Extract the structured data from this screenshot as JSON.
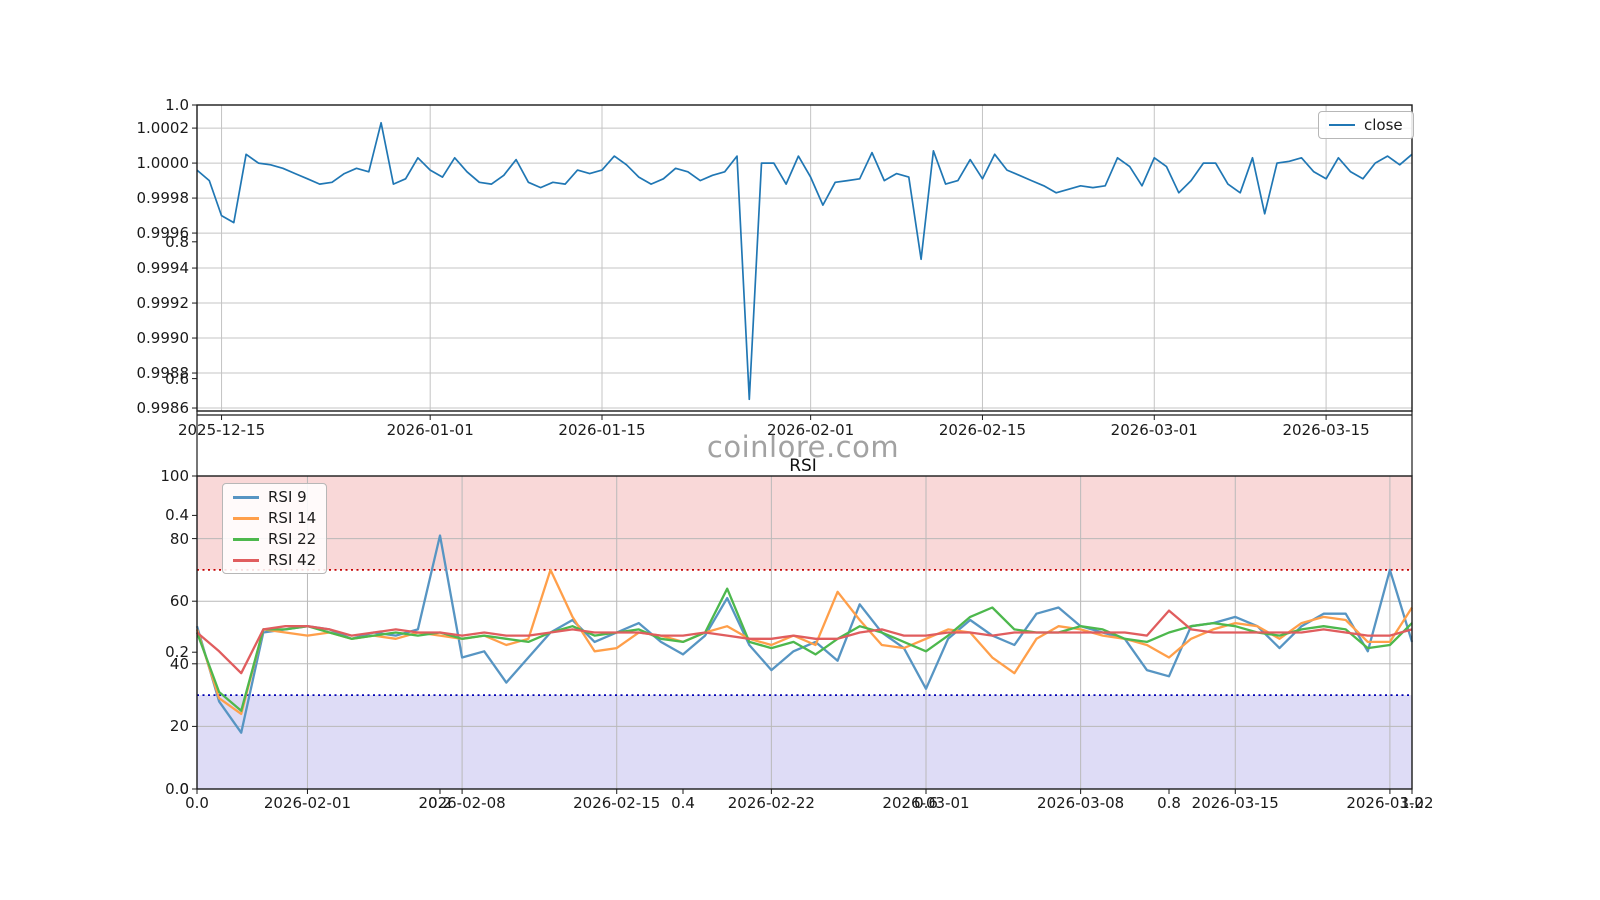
{
  "watermark": {
    "text": "coinlore.com"
  },
  "chart_data": [
    {
      "type": "line",
      "name": "price-close",
      "legend": [
        {
          "label": "close",
          "color": "#2077b4"
        }
      ],
      "x_start_date": "2025-12-13",
      "frequency": "daily",
      "n_points": 100,
      "x_tick_labels": [
        "2025-12-15",
        "2026-01-01",
        "2026-01-15",
        "2026-02-01",
        "2026-02-15",
        "2026-03-01",
        "2026-03-15"
      ],
      "x_tick_days": [
        2,
        19,
        33,
        50,
        64,
        78,
        92
      ],
      "y_tick_labels": [
        "1.0002",
        "1.0000",
        "0.9998",
        "0.9996",
        "0.9994",
        "0.9992",
        "0.9990",
        "0.9988",
        "0.9986"
      ],
      "y_tick_values": [
        1.0002,
        1.0,
        0.9998,
        0.9996,
        0.9994,
        0.9992,
        0.999,
        0.9988,
        0.9986
      ],
      "ylim": [
        0.998583,
        1.000332
      ],
      "grid": true,
      "series": [
        {
          "name": "close",
          "color": "#2077b4",
          "values": [
            0.99996,
            0.9999,
            0.9997,
            0.99966,
            1.00005,
            1.0,
            0.99999,
            0.99997,
            0.99994,
            0.99991,
            0.99988,
            0.99989,
            0.99994,
            0.99997,
            0.99995,
            1.00023,
            0.99988,
            0.99991,
            1.00003,
            0.99996,
            0.99992,
            1.00003,
            0.99995,
            0.99989,
            0.99988,
            0.99993,
            1.00002,
            0.99989,
            0.99986,
            0.99989,
            0.99988,
            0.99996,
            0.99994,
            0.99996,
            1.00004,
            0.99999,
            0.99992,
            0.99988,
            0.99991,
            0.99997,
            0.99995,
            0.9999,
            0.99993,
            0.99995,
            1.00004,
            0.99865,
            1.0,
            1.0,
            0.99988,
            1.00004,
            0.99992,
            0.99976,
            0.99989,
            0.9999,
            0.99991,
            1.00006,
            0.9999,
            0.99994,
            0.99992,
            0.99945,
            1.00007,
            0.99988,
            0.9999,
            1.00002,
            0.99991,
            1.00005,
            0.99996,
            0.99993,
            0.9999,
            0.99987,
            0.99983,
            0.99985,
            0.99987,
            0.99986,
            0.99987,
            1.00003,
            0.99998,
            0.99987,
            1.00003,
            0.99998,
            0.99983,
            0.9999,
            1.0,
            1.0,
            0.99988,
            0.99983,
            1.00003,
            0.99971,
            1.0,
            1.00001,
            1.00003,
            0.99995,
            0.99991,
            1.00003,
            0.99995,
            0.99991,
            1.0,
            1.00004,
            0.99999,
            1.00005
          ]
        }
      ]
    },
    {
      "type": "line",
      "name": "rsi",
      "title": "RSI",
      "x_start_date": "2026-01-27",
      "frequency": "daily",
      "n_points": 56,
      "x_tick_labels": [
        "2026-02-01",
        "2026-02-08",
        "2026-02-15",
        "2026-02-22",
        "2026-03-01",
        "2026-03-08",
        "2026-03-15",
        "2026-03-22"
      ],
      "x_tick_idx": [
        5,
        12,
        19,
        26,
        33,
        40,
        47,
        54
      ],
      "y_tick_labels": [
        "0",
        "20",
        "40",
        "60",
        "80",
        "100"
      ],
      "y_ticks": [
        0,
        20,
        40,
        60,
        80,
        100
      ],
      "ylim": [
        0,
        100
      ],
      "grid": true,
      "overbought": 70,
      "oversold": 30,
      "bands": {
        "upper_color": "#f9d8d8",
        "lower_color": "#dedcf6"
      },
      "threshold_colors": {
        "upper": "#c40000",
        "lower": "#0000b4"
      },
      "legend": [
        {
          "label": "RSI 9",
          "color": "#5795c3"
        },
        {
          "label": "RSI 14",
          "color": "#ff9f4a"
        },
        {
          "label": "RSI 22",
          "color": "#4db84d"
        },
        {
          "label": "RSI 42",
          "color": "#e05d5e"
        }
      ],
      "series": [
        {
          "name": "RSI 9",
          "color": "#5795c3",
          "values": [
            52,
            28,
            18,
            50,
            51,
            52,
            51,
            48,
            50,
            49,
            51,
            81,
            42,
            44,
            34,
            42,
            50,
            54,
            47,
            50,
            53,
            47,
            43,
            49,
            61,
            46,
            38,
            44,
            47,
            41,
            59,
            50,
            45,
            32,
            48,
            54,
            49,
            46,
            56,
            58,
            52,
            50,
            48,
            38,
            36,
            52,
            53,
            55,
            52,
            45,
            52,
            56,
            56,
            44,
            70,
            47
          ]
        },
        {
          "name": "RSI 14",
          "color": "#ff9f4a",
          "values": [
            51,
            29,
            24,
            51,
            50,
            49,
            50,
            48,
            49,
            48,
            50,
            49,
            48,
            49,
            46,
            48,
            70,
            55,
            44,
            45,
            50,
            49,
            47,
            50,
            52,
            48,
            46,
            49,
            46,
            63,
            54,
            46,
            45,
            48,
            51,
            50,
            42,
            37,
            48,
            52,
            51,
            49,
            48,
            46,
            42,
            48,
            51,
            53,
            52,
            48,
            53,
            55,
            54,
            47,
            47,
            58
          ]
        },
        {
          "name": "RSI 22",
          "color": "#4db84d",
          "values": [
            50,
            31,
            25,
            51,
            51,
            52,
            50,
            48,
            49,
            50,
            49,
            50,
            48,
            49,
            48,
            47,
            50,
            52,
            49,
            50,
            51,
            48,
            47,
            50,
            64,
            47,
            45,
            47,
            43,
            48,
            52,
            50,
            47,
            44,
            49,
            55,
            58,
            51,
            50,
            50,
            52,
            51,
            48,
            47,
            50,
            52,
            53,
            52,
            50,
            49,
            51,
            52,
            51,
            45,
            46,
            53
          ]
        },
        {
          "name": "RSI 42",
          "color": "#e05d5e",
          "values": [
            50,
            44,
            37,
            51,
            52,
            52,
            51,
            49,
            50,
            51,
            50,
            50,
            49,
            50,
            49,
            49,
            50,
            51,
            50,
            50,
            50,
            49,
            49,
            50,
            49,
            48,
            48,
            49,
            48,
            48,
            50,
            51,
            49,
            49,
            50,
            50,
            49,
            50,
            50,
            50,
            50,
            50,
            50,
            49,
            57,
            51,
            50,
            50,
            50,
            50,
            50,
            51,
            50,
            49,
            49,
            51
          ]
        }
      ]
    }
  ],
  "ghost_axis": {
    "y_tick_labels": [
      "1.0",
      "0.8",
      "0.6",
      "0.4",
      "0.2",
      "0.0"
    ],
    "y_tick_values": [
      1.0,
      0.8,
      0.6,
      0.4,
      0.2,
      0.0
    ],
    "x_tick_labels": [
      "0.0",
      "0.2",
      "0.4",
      "0.6",
      "0.8",
      "1.0"
    ],
    "x_tick_values": [
      0.0,
      0.2,
      0.4,
      0.6,
      0.8,
      1.0
    ]
  }
}
